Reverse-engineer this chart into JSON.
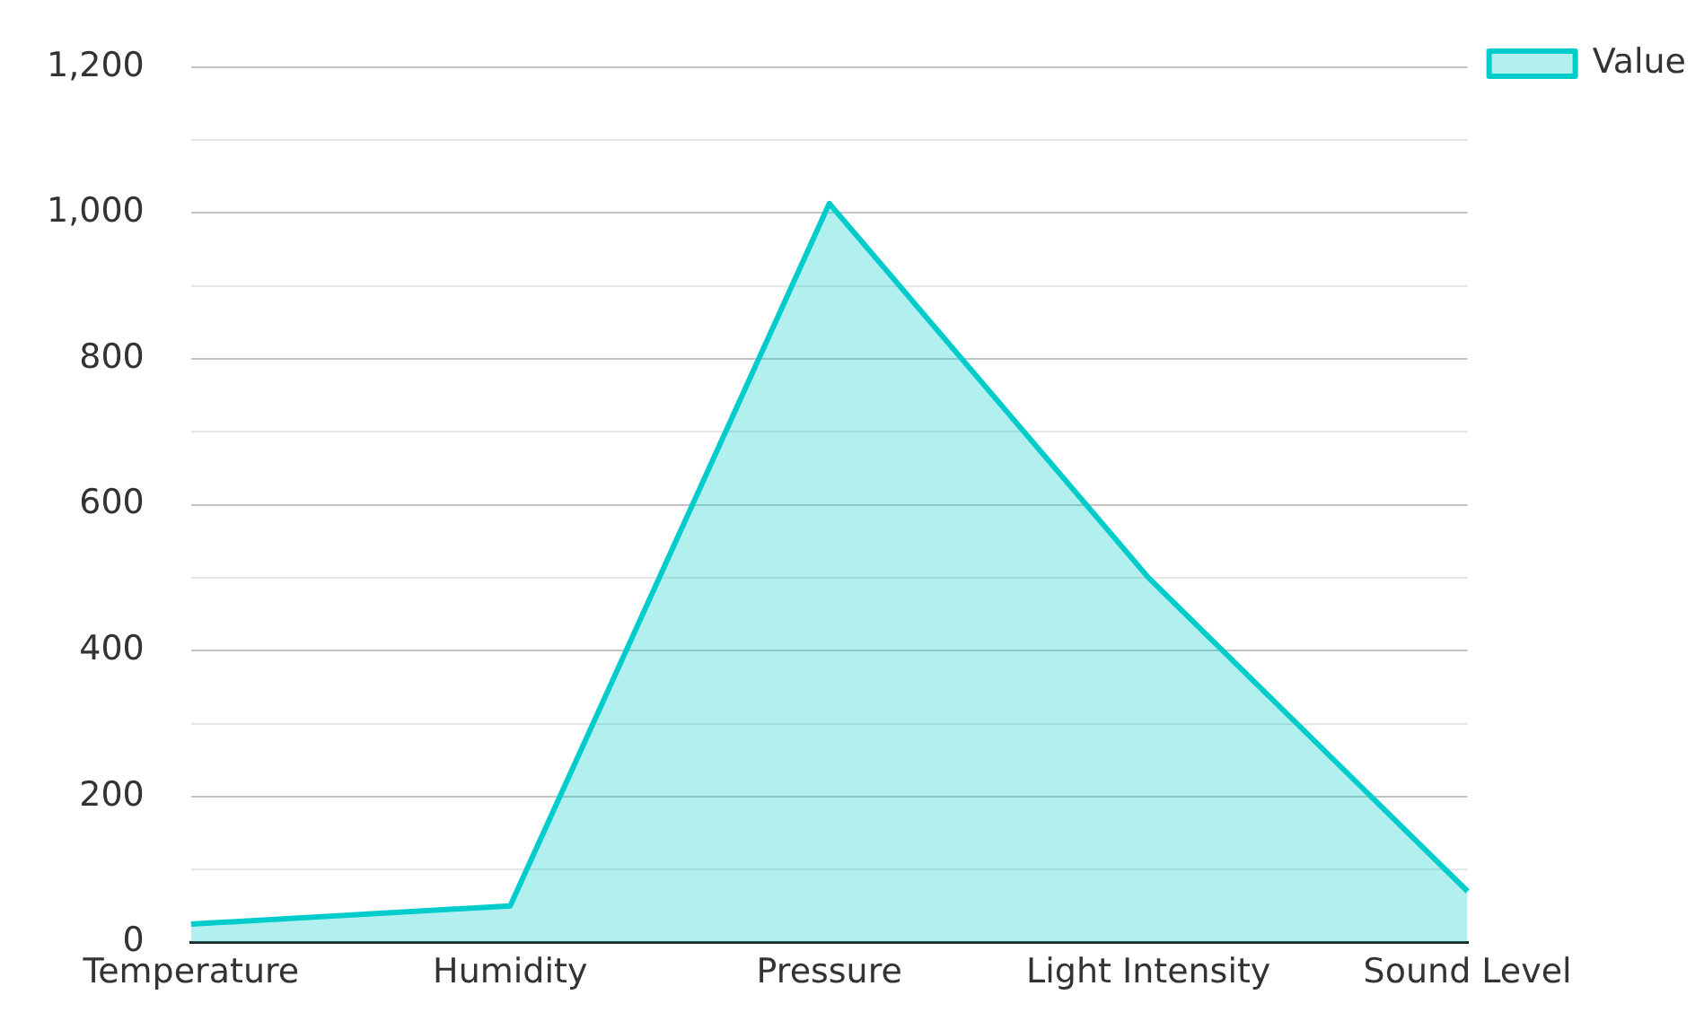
{
  "chart_data": {
    "type": "area",
    "categories": [
      "Temperature",
      "Humidity",
      "Pressure",
      "Light Intensity",
      "Sound Level"
    ],
    "series": [
      {
        "name": "Value",
        "color": "#00cccc",
        "values": [
          25,
          50,
          1013,
          500,
          70
        ]
      }
    ],
    "ylim": [
      0,
      1200
    ],
    "yticks": [
      0,
      {
        "value": 100,
        "label": null
      },
      200,
      {
        "value": 300,
        "label": null
      },
      400,
      {
        "value": 500,
        "label": null
      },
      600,
      {
        "value": 700,
        "label": null
      },
      800,
      {
        "value": 900,
        "label": null
      },
      {
        "value": 1000,
        "label": "1,000"
      },
      {
        "value": 1100,
        "label": null
      },
      {
        "value": 1200,
        "label": "1,200"
      }
    ],
    "grid": "y",
    "legend": "top right"
  }
}
